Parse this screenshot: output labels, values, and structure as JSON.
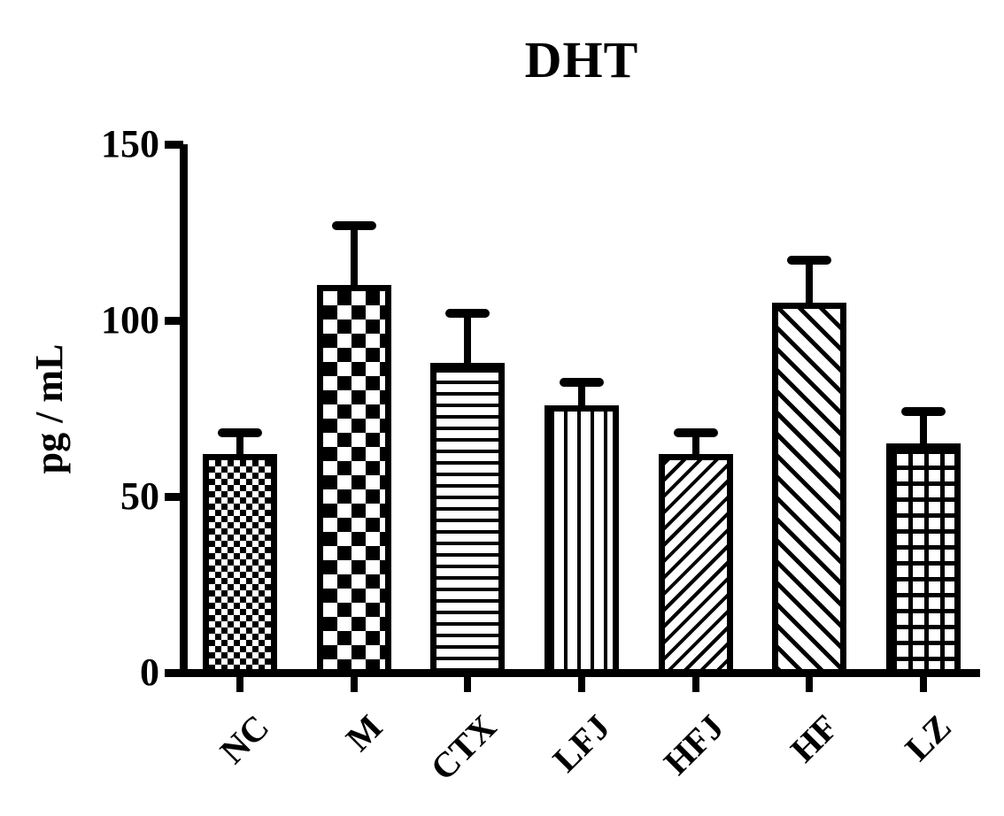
{
  "chart_data": {
    "type": "bar",
    "title": "DHT",
    "ylabel": "pg / mL",
    "xlabel": "",
    "categories": [
      "NC",
      "M",
      "CTX",
      "LFJ",
      "HFJ",
      "HF",
      "LZ"
    ],
    "values": [
      62,
      110,
      88,
      76,
      62,
      105,
      65
    ],
    "errors_plus": [
      6,
      17,
      14,
      6.5,
      6,
      12,
      9
    ],
    "error_bars": "upper-only-with-caps",
    "yticks": [
      0,
      50,
      100,
      150
    ],
    "ylim": [
      0,
      150
    ],
    "grid": false,
    "legend": "none",
    "bar_fill": "#ffffff",
    "line_color": "#000000",
    "bar_patterns": [
      "checkerboard-small",
      "checkerboard-large",
      "horizontal-stripes",
      "vertical-stripes",
      "diagonal-stripes-forward",
      "diagonal-stripes-backward",
      "grid-crosshatch"
    ]
  }
}
